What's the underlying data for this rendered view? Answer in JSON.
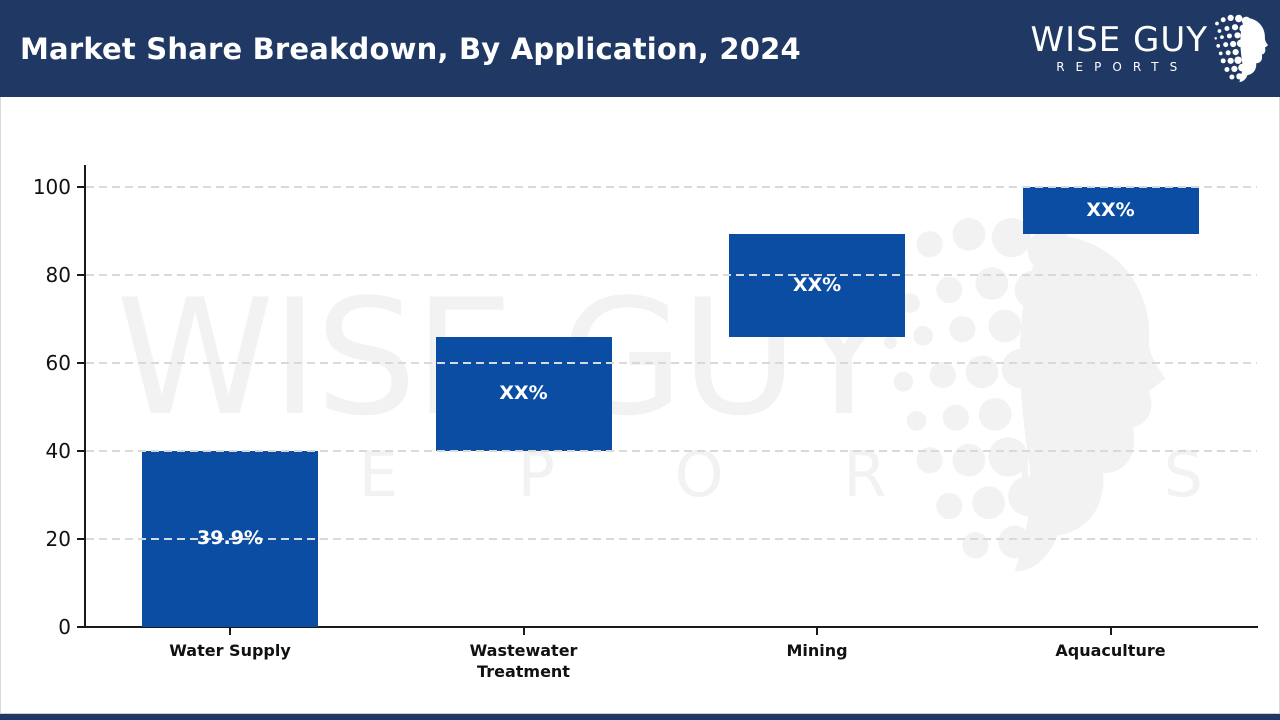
{
  "header": {
    "title": "Market Share Breakdown, By Application, 2024",
    "logo_line1": "WISE GUY",
    "logo_line2": "REPORTS",
    "background": "#1F3864"
  },
  "watermark": {
    "line1": "WISE GUY",
    "line2": "R E P O R T S"
  },
  "chart_data": {
    "type": "bar",
    "subtype": "floating-waterfall",
    "title": "Market Share Breakdown, By Application, 2024",
    "categories": [
      "Water Supply",
      "Wastewater Treatment",
      "Mining",
      "Aquaculture"
    ],
    "tick_label_lines": [
      [
        "Water Supply"
      ],
      [
        "Wastewater",
        "Treatment"
      ],
      [
        "Mining"
      ],
      [
        "Aquaculture"
      ]
    ],
    "segments": [
      {
        "category": "Water Supply",
        "start": 0,
        "end": 39.9,
        "size": 39.9,
        "label": "39.9%"
      },
      {
        "category": "Wastewater Treatment",
        "start": 39.9,
        "end": 65.8,
        "size": 25.9,
        "label": "XX%"
      },
      {
        "category": "Mining",
        "start": 65.8,
        "end": 89.3,
        "size": 23.5,
        "label": "XX%"
      },
      {
        "category": "Aquaculture",
        "start": 89.3,
        "end": 100,
        "size": 10.7,
        "label": "XX%"
      }
    ],
    "ylim": [
      0,
      105
    ],
    "yticks": [
      0,
      20,
      40,
      60,
      80,
      100
    ],
    "grid": "horizontal-dashed",
    "legend": "none",
    "bar_color": "#0B4DA2",
    "value_label_color": "#ffffff",
    "axis_color": "#1a1a1a",
    "gridline_color": "#d9d9d9",
    "watermark_color": "#f2f2f2"
  }
}
